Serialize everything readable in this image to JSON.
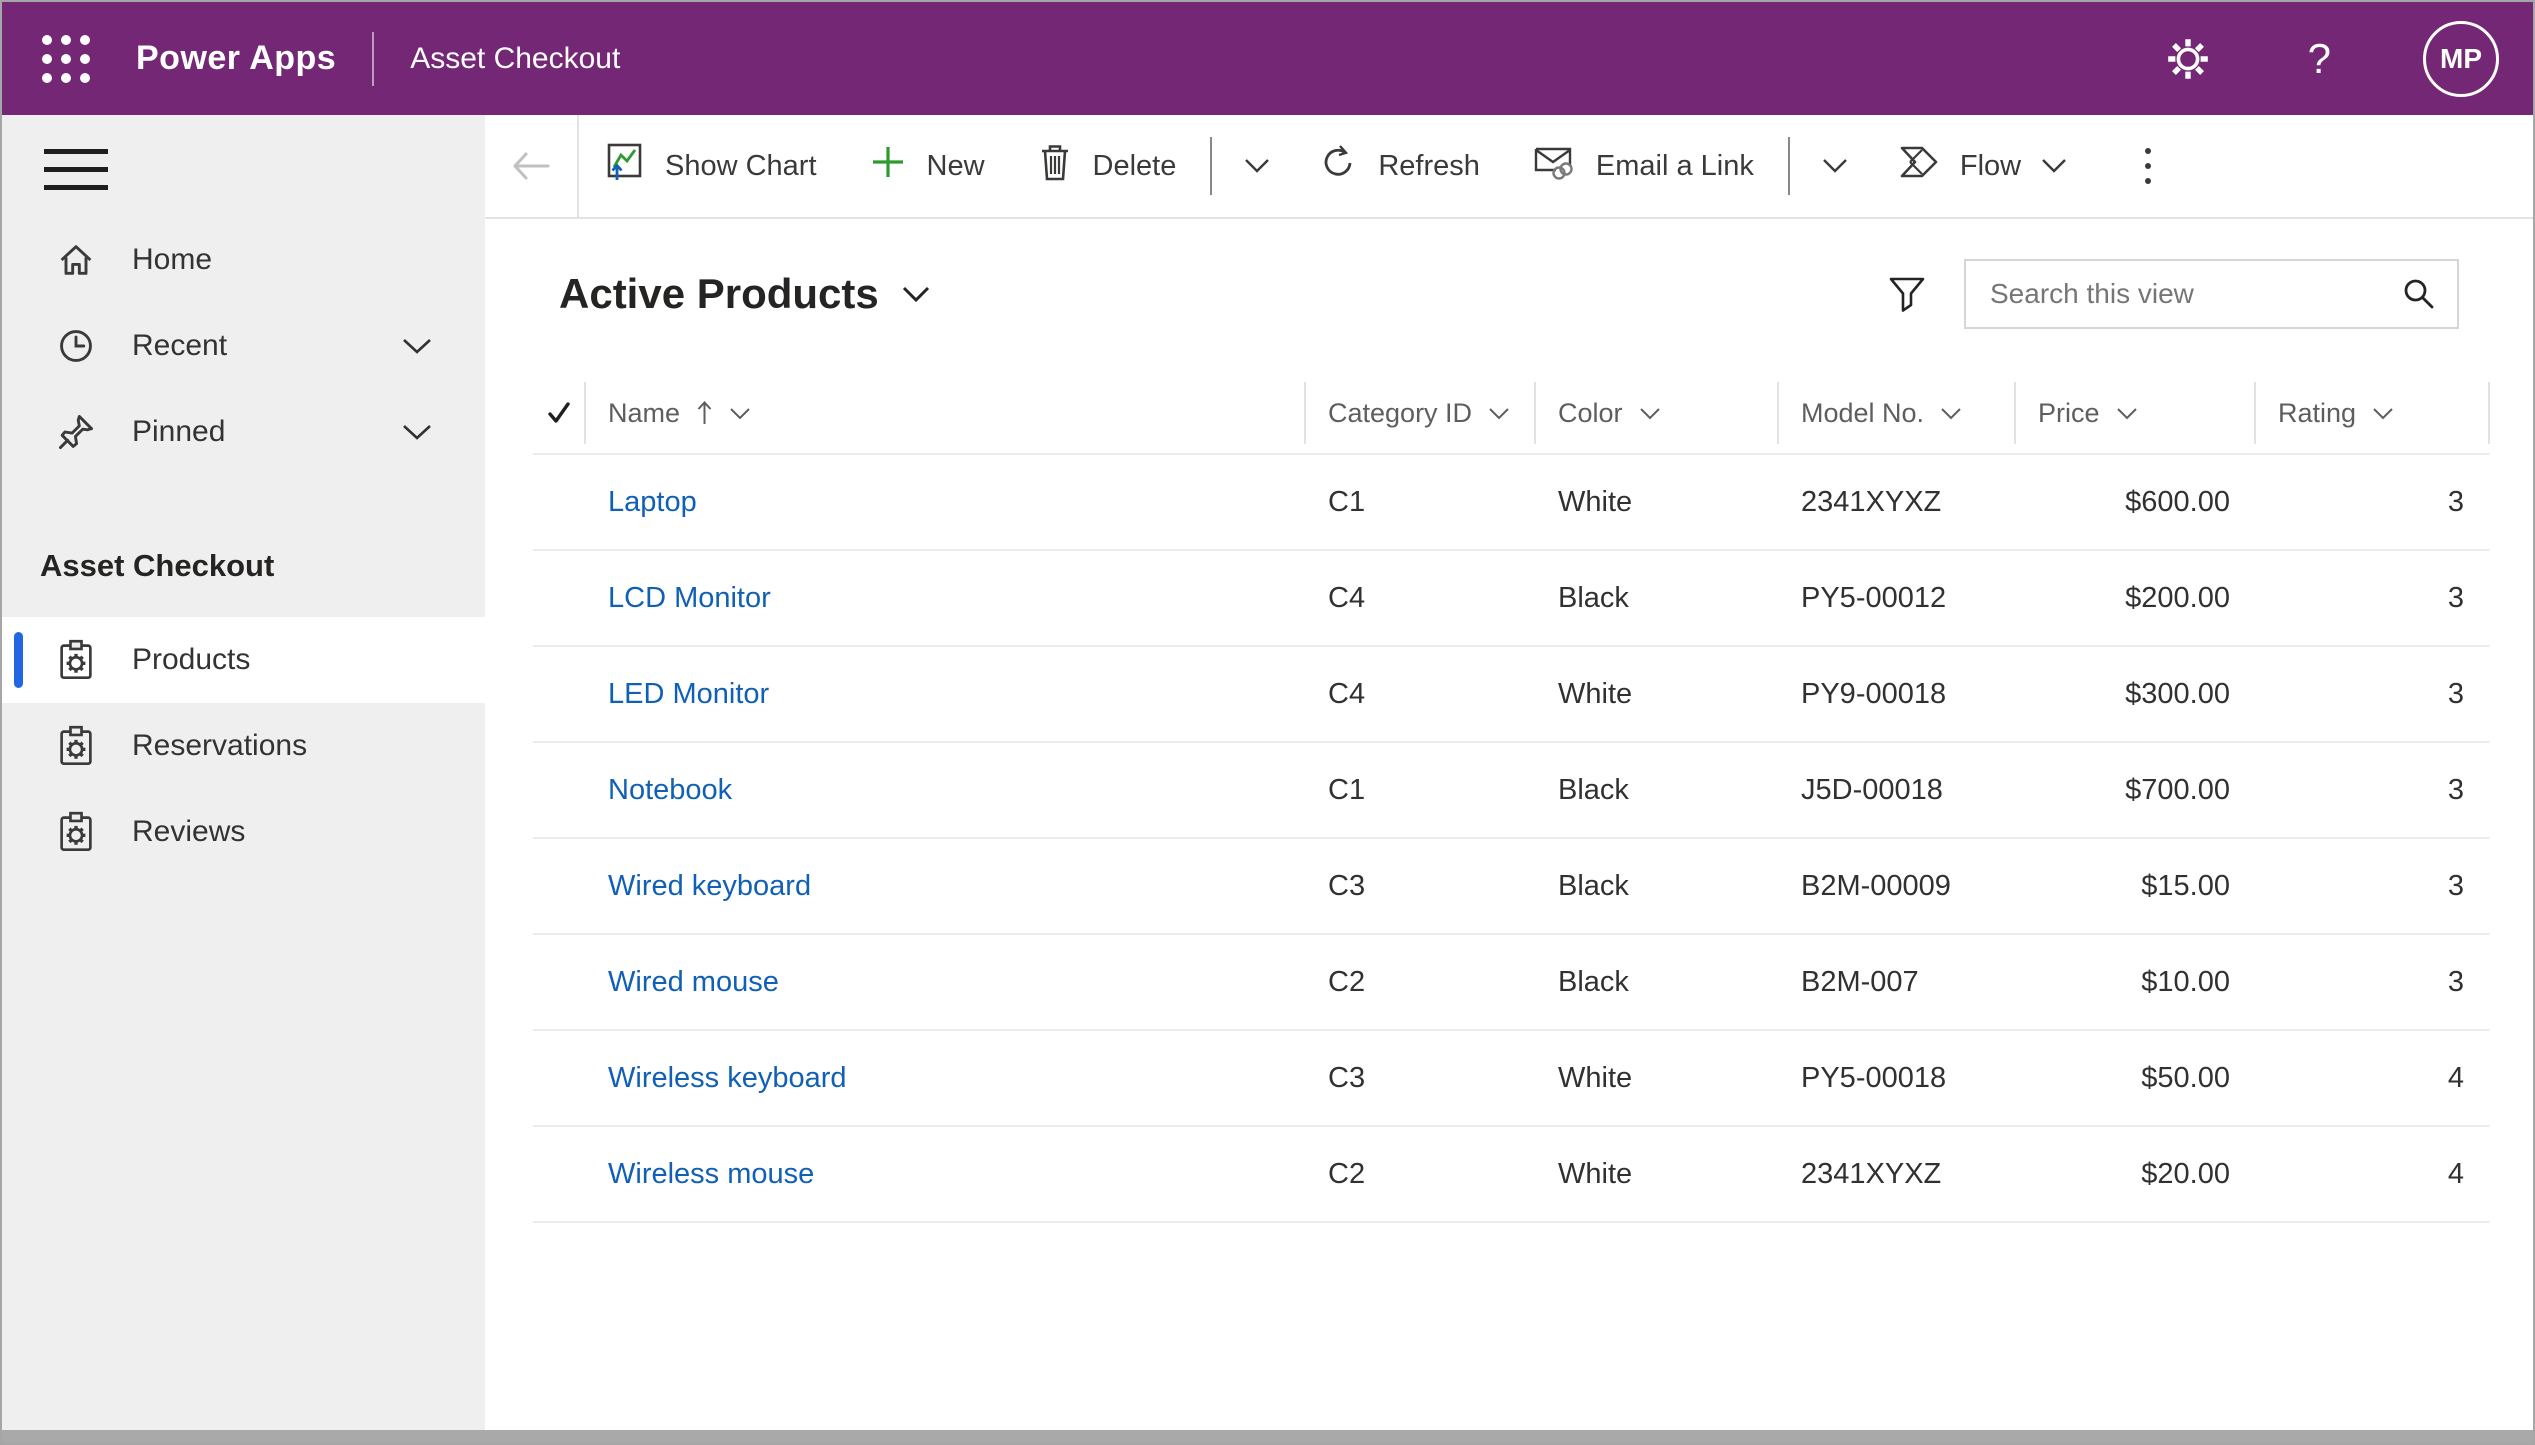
{
  "colors": {
    "brand_purple": "#742774",
    "selected_indicator_blue": "#2266E3",
    "link_blue": "#1160B7",
    "new_plus_green": "#2E9B2E",
    "scrollbar_gray": "#A9A9A9"
  },
  "app_header": {
    "brand": "Power Apps",
    "app_title": "Asset Checkout",
    "avatar_initials": "MP"
  },
  "sidebar": {
    "nav_items": [
      {
        "label": "Home",
        "has_chevron": false
      },
      {
        "label": "Recent",
        "has_chevron": true
      },
      {
        "label": "Pinned",
        "has_chevron": true
      }
    ],
    "section_title": "Asset Checkout",
    "entities": [
      {
        "label": "Products",
        "selected": true
      },
      {
        "label": "Reservations",
        "selected": false
      },
      {
        "label": "Reviews",
        "selected": false
      }
    ]
  },
  "toolbar": {
    "show_chart": "Show Chart",
    "new": "New",
    "delete": "Delete",
    "refresh": "Refresh",
    "email_link": "Email a Link",
    "flow": "Flow"
  },
  "view": {
    "title": "Active Products",
    "search_placeholder": "Search this view"
  },
  "table": {
    "columns": [
      {
        "label": "Name",
        "sorted_ascending": true
      },
      {
        "label": "Category ID"
      },
      {
        "label": "Color"
      },
      {
        "label": "Model No."
      },
      {
        "label": "Price"
      },
      {
        "label": "Rating"
      }
    ],
    "rows": [
      {
        "name": "Laptop",
        "category_id": "C1",
        "color": "White",
        "model_no": "2341XYXZ",
        "price": "$600.00",
        "rating": "3"
      },
      {
        "name": "LCD Monitor",
        "category_id": "C4",
        "color": "Black",
        "model_no": "PY5-00012",
        "price": "$200.00",
        "rating": "3"
      },
      {
        "name": "LED Monitor",
        "category_id": "C4",
        "color": "White",
        "model_no": "PY9-00018",
        "price": "$300.00",
        "rating": "3"
      },
      {
        "name": "Notebook",
        "category_id": "C1",
        "color": "Black",
        "model_no": "J5D-00018",
        "price": "$700.00",
        "rating": "3"
      },
      {
        "name": "Wired keyboard",
        "category_id": "C3",
        "color": "Black",
        "model_no": "B2M-00009",
        "price": "$15.00",
        "rating": "3"
      },
      {
        "name": "Wired mouse",
        "category_id": "C2",
        "color": "Black",
        "model_no": "B2M-007",
        "price": "$10.00",
        "rating": "3"
      },
      {
        "name": "Wireless keyboard",
        "category_id": "C3",
        "color": "White",
        "model_no": "PY5-00018",
        "price": "$50.00",
        "rating": "4"
      },
      {
        "name": "Wireless mouse",
        "category_id": "C2",
        "color": "White",
        "model_no": "2341XYXZ",
        "price": "$20.00",
        "rating": "4"
      }
    ]
  }
}
